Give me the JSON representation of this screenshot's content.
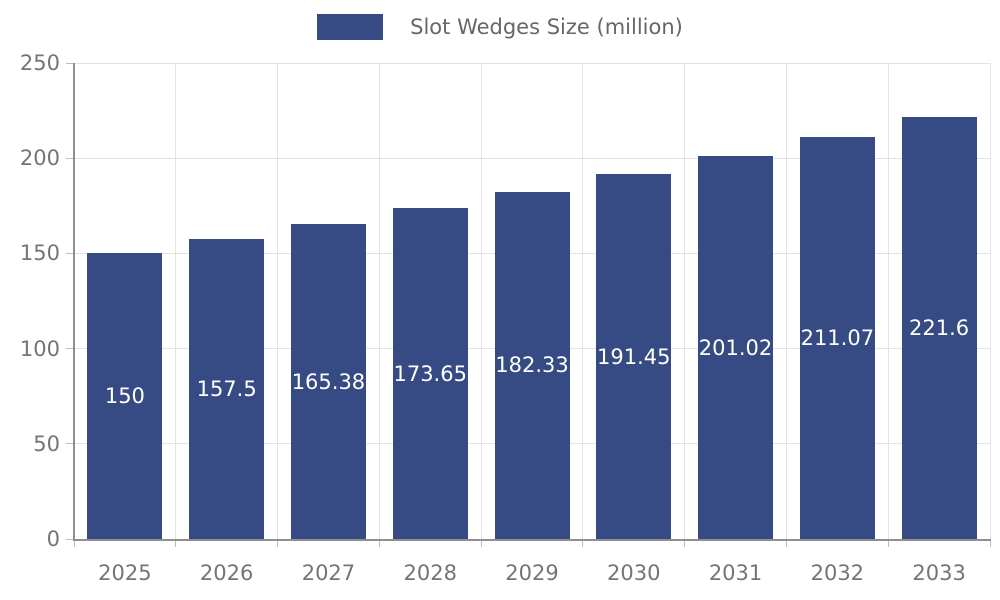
{
  "chart_data": {
    "type": "bar",
    "legend": "Slot Wedges Size (million)",
    "categories": [
      "2025",
      "2026",
      "2027",
      "2028",
      "2029",
      "2030",
      "2031",
      "2032",
      "2033"
    ],
    "values": [
      150,
      157.5,
      165.38,
      173.65,
      182.33,
      191.45,
      201.02,
      211.07,
      221.6
    ],
    "value_labels": [
      "150",
      "157.5",
      "165.38",
      "173.65",
      "182.33",
      "191.45",
      "201.02",
      "211.07",
      "221.6"
    ],
    "xlabel": "",
    "ylabel": "",
    "ylim": [
      0,
      250
    ],
    "yticks": [
      0,
      50,
      100,
      150,
      200,
      250
    ],
    "grid": true,
    "legend_position": "top-center",
    "colors": {
      "bar": "#364a83",
      "value_label": "#ffffff",
      "axis_line": "#8f8f8f",
      "grid_line": "#e3e3e3",
      "tick_mark": "#bcbcbc",
      "tick_label": "#757575",
      "legend_text": "#676767",
      "background": "#ffffff"
    }
  }
}
